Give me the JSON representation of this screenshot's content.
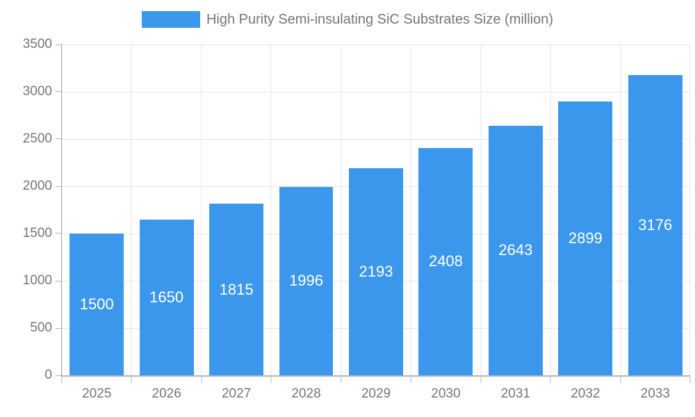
{
  "legend": {
    "label": "High Purity Semi-insulating SiC Substrates Size (million)"
  },
  "chart_data": {
    "type": "bar",
    "title": "High Purity Semi-insulating SiC Substrates Size (million)",
    "categories": [
      "2025",
      "2026",
      "2027",
      "2028",
      "2029",
      "2030",
      "2031",
      "2032",
      "2033"
    ],
    "values": [
      1500,
      1650,
      1815,
      1996,
      2193,
      2408,
      2643,
      2899,
      3176
    ],
    "series": [
      {
        "name": "High Purity Semi-insulating SiC Substrates Size (million)",
        "values": [
          1500,
          1650,
          1815,
          1996,
          2193,
          2408,
          2643,
          2899,
          3176
        ]
      }
    ],
    "xlabel": "",
    "ylabel": "",
    "ylim": [
      0,
      3500
    ],
    "yticks": [
      0,
      500,
      1000,
      1500,
      2000,
      2500,
      3000,
      3500
    ],
    "grid": true,
    "legend_position": "top",
    "value_labels": "inside-center"
  },
  "colors": {
    "bar": "#3b97ec",
    "value_label": "#ffffff",
    "axis_text": "#757575",
    "gridline": "#e6e6e6",
    "y_axis_line": "#9a9a9a",
    "x_axis_line": "#b3b3b3",
    "background": "#ffffff"
  }
}
